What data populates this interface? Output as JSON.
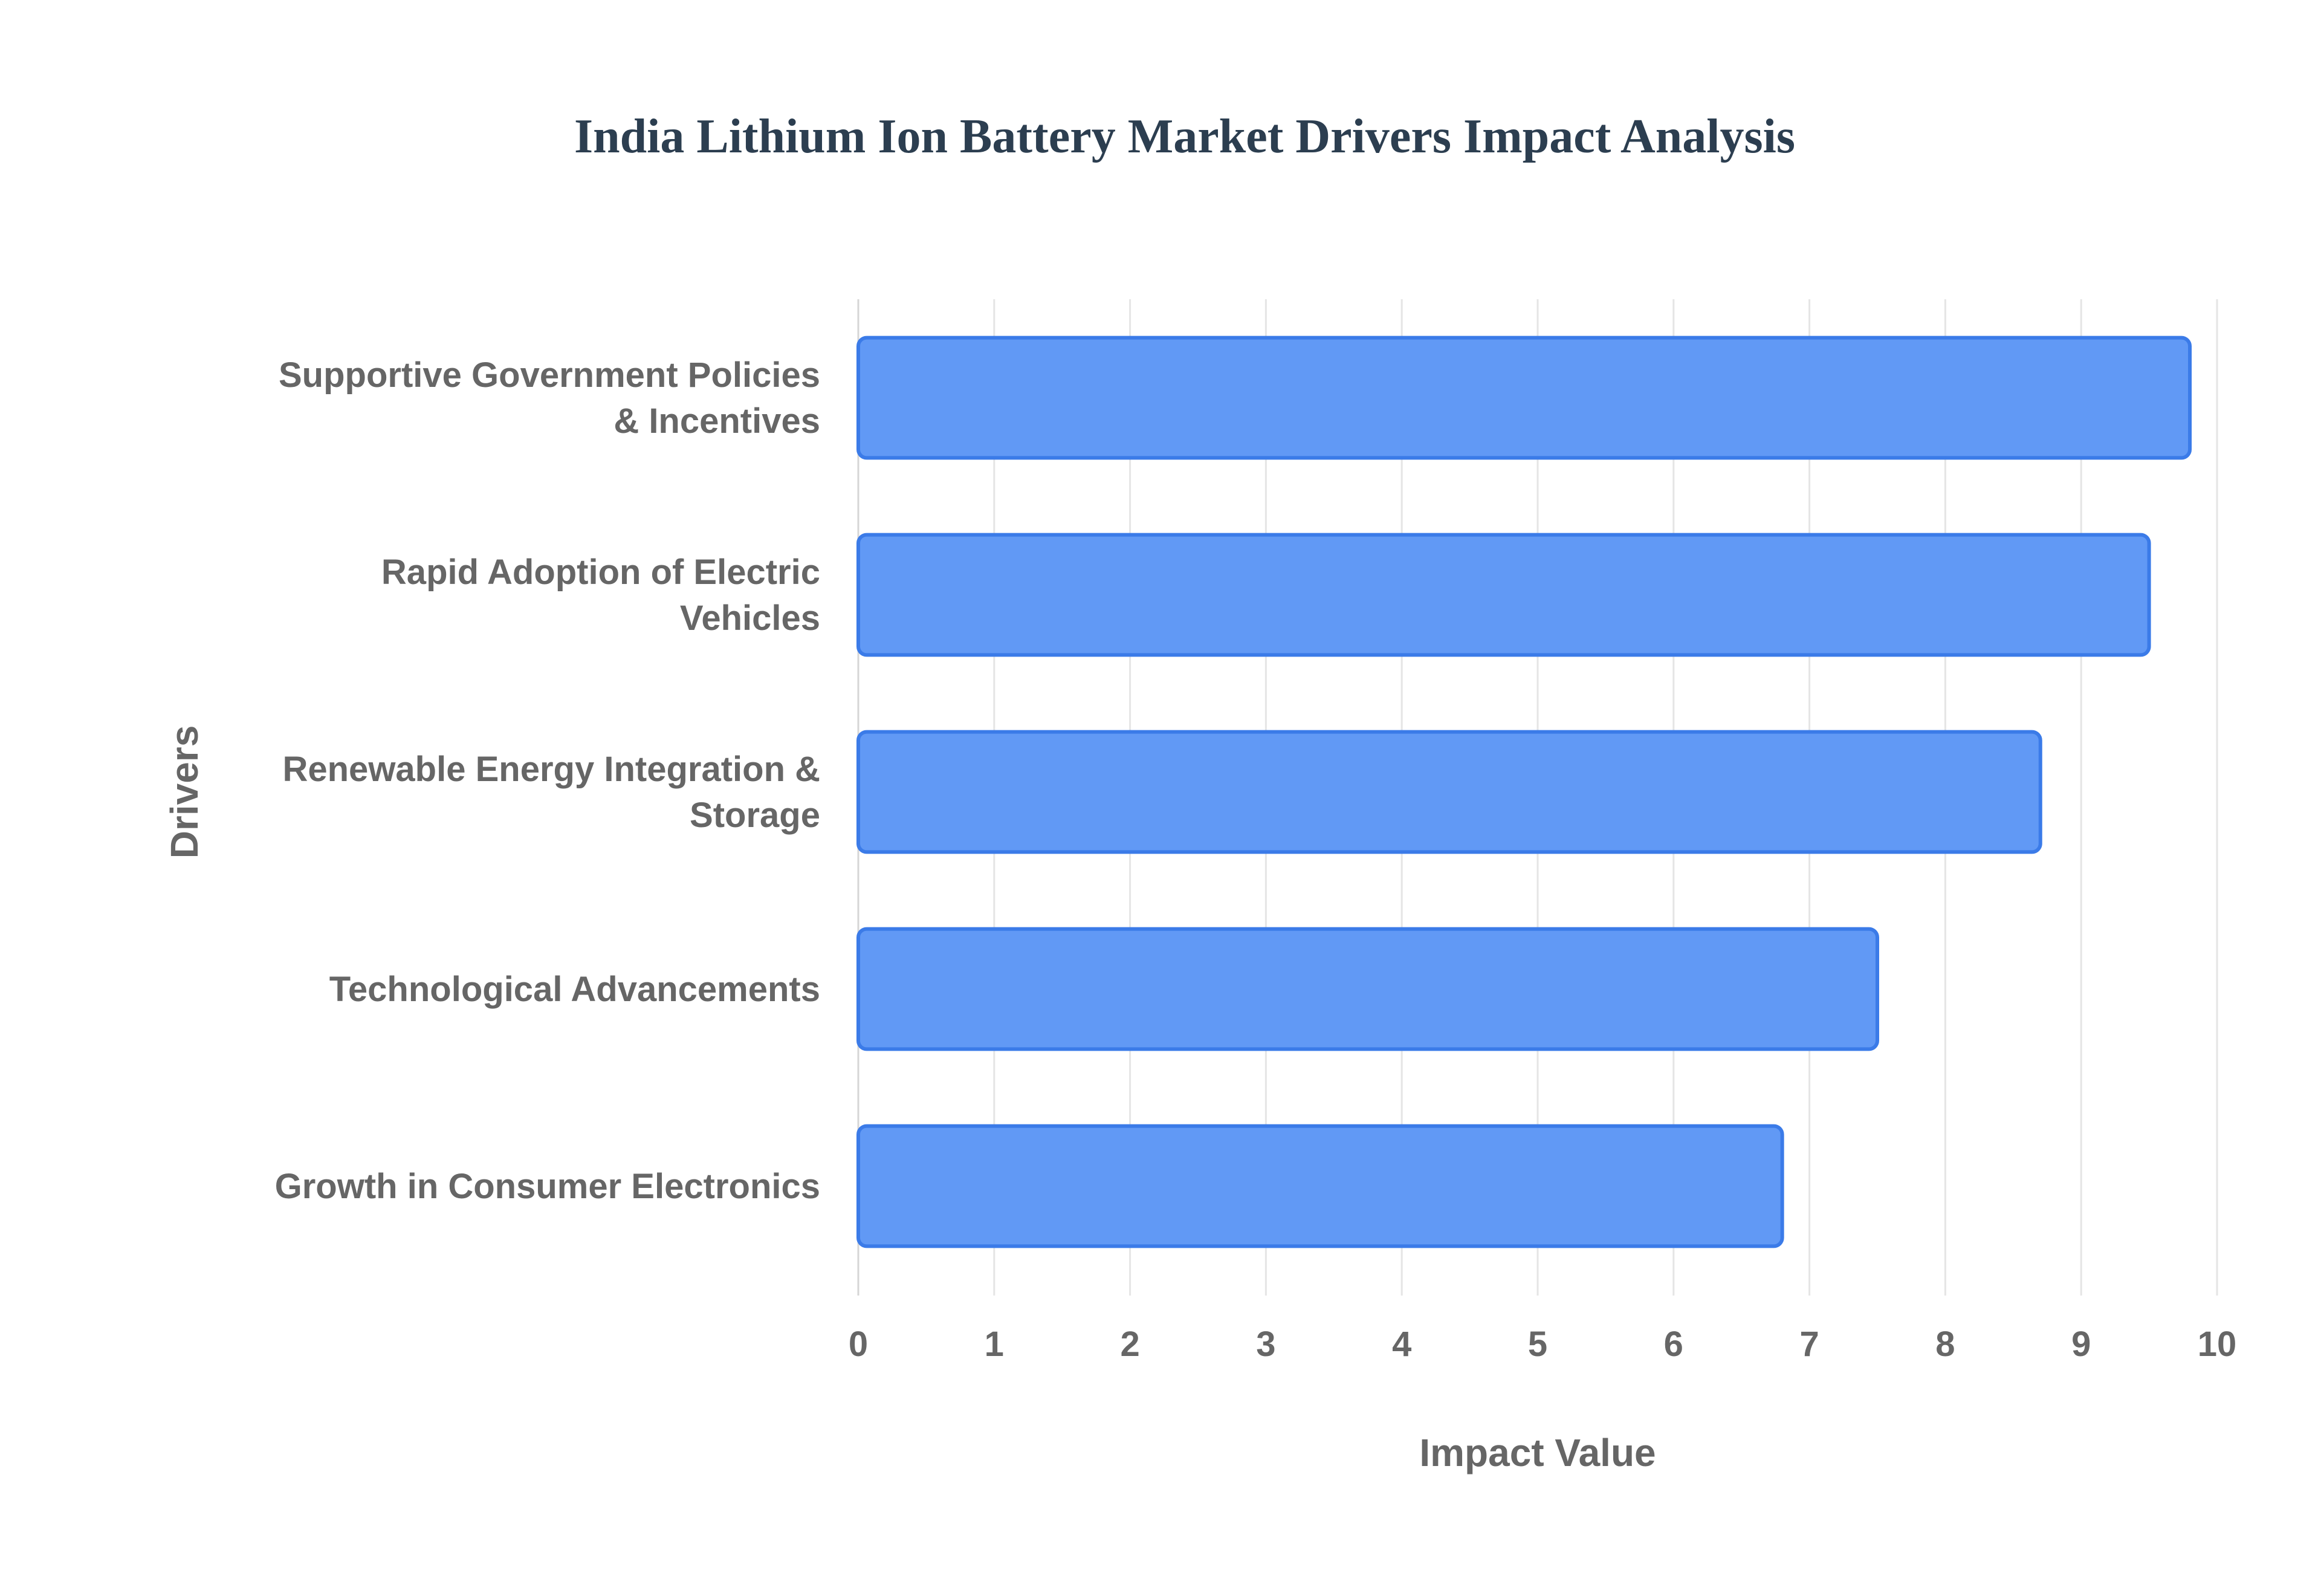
{
  "chart_data": {
    "type": "bar",
    "orientation": "horizontal",
    "title": "India Lithium Ion Battery Market Drivers Impact Analysis",
    "xlabel": "Impact Value",
    "ylabel": "Drivers",
    "xlim": [
      0,
      10
    ],
    "xticks": [
      "0",
      "1",
      "2",
      "3",
      "4",
      "5",
      "6",
      "7",
      "8",
      "9",
      "10"
    ],
    "grid": true,
    "legend": "none",
    "categories": [
      [
        "Supportive Government Policies",
        "& Incentives"
      ],
      [
        "Rapid Adoption of Electric",
        "Vehicles"
      ],
      [
        "Renewable Energy Integration &",
        "Storage"
      ],
      [
        "Technological Advancements"
      ],
      [
        "Growth in Consumer Electronics"
      ]
    ],
    "values": [
      9.8,
      9.5,
      8.7,
      7.5,
      6.8
    ],
    "colors": {
      "bar_fill": "#6199f5",
      "bar_stroke": "#3b7be8",
      "title": "#2c3e50",
      "text": "#666666"
    }
  }
}
